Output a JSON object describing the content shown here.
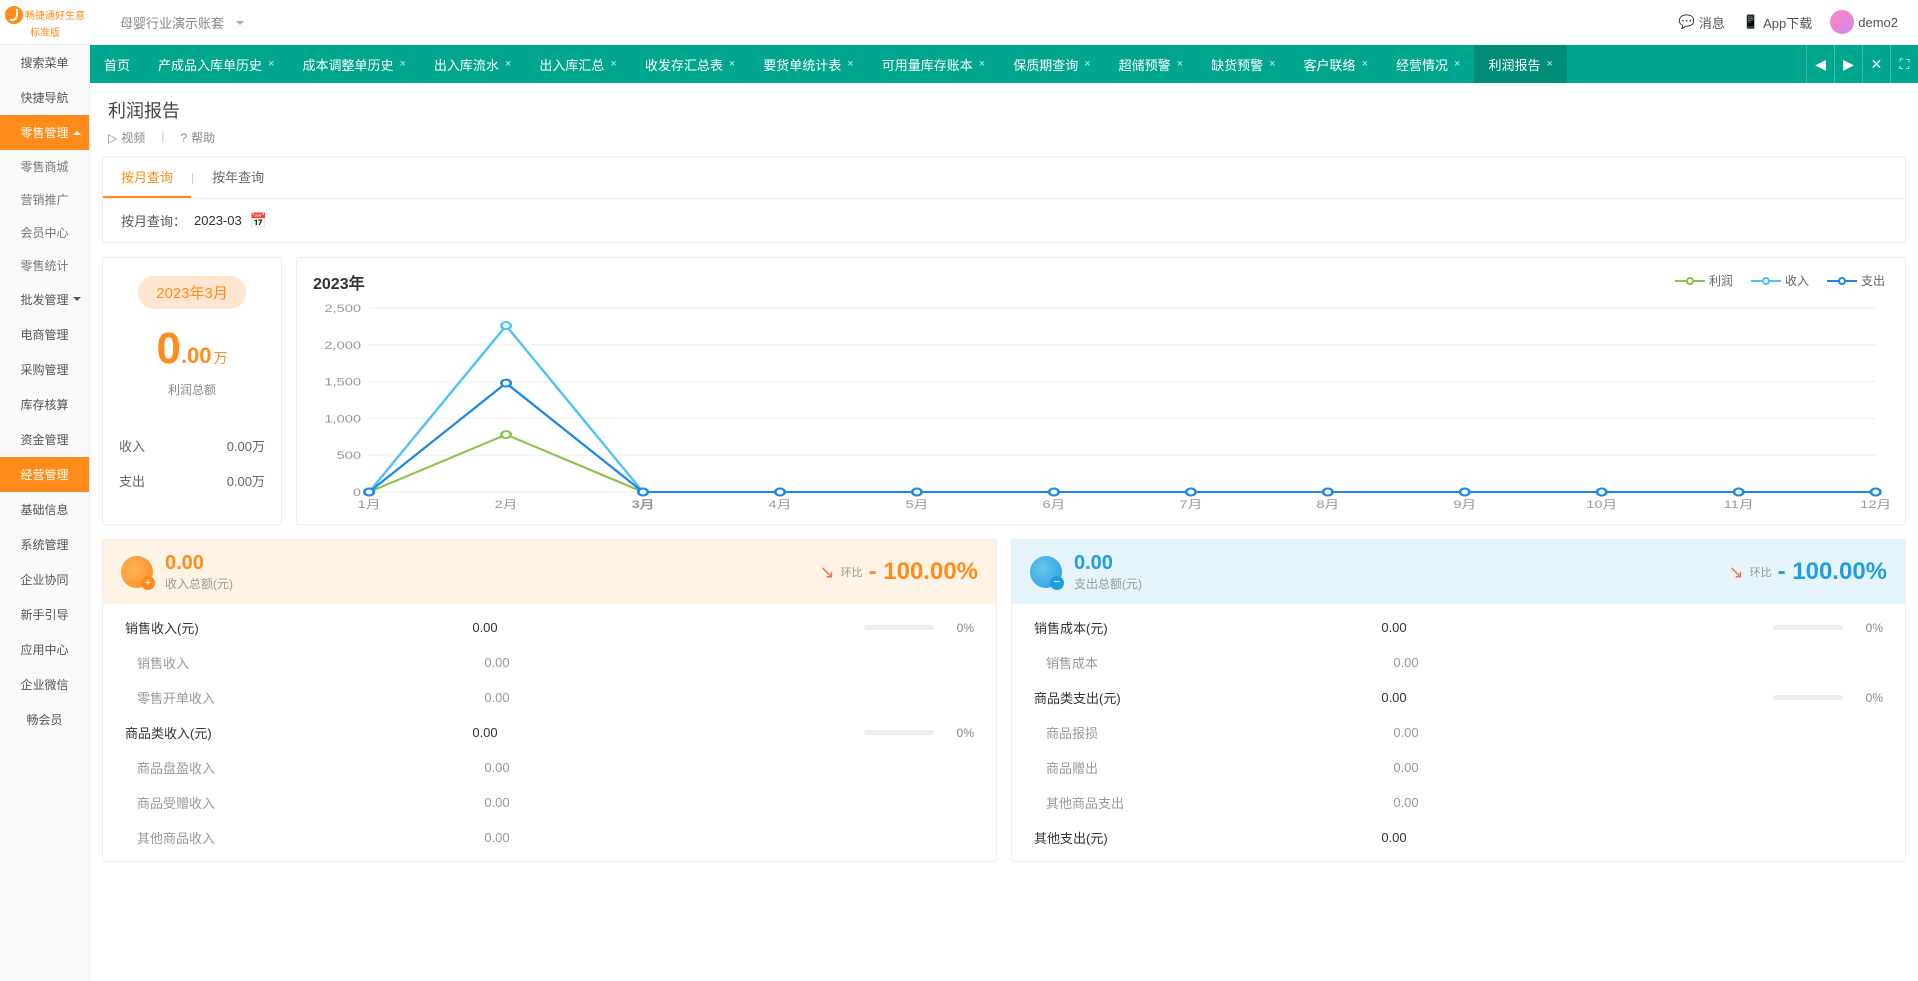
{
  "header": {
    "logo_text": "畅捷通好生意",
    "logo_sub": "标准版",
    "org_name": "母婴行业演示账套",
    "actions": {
      "message": "消息",
      "app_download": "App下载",
      "username": "demo2"
    }
  },
  "sidebar": {
    "items": [
      {
        "label": "搜索菜单",
        "name": "sidebar-item-search"
      },
      {
        "label": "快捷导航",
        "name": "sidebar-item-quicknav"
      },
      {
        "label": "零售管理",
        "name": "sidebar-item-retail",
        "active": true,
        "expanded": true
      },
      {
        "label": "零售商城",
        "name": "sidebar-sub-retail-mall",
        "sub": true
      },
      {
        "label": "营销推广",
        "name": "sidebar-sub-marketing",
        "sub": true
      },
      {
        "label": "会员中心",
        "name": "sidebar-sub-member",
        "sub": true
      },
      {
        "label": "零售统计",
        "name": "sidebar-sub-retail-stats",
        "sub": true
      },
      {
        "label": "批发管理",
        "name": "sidebar-item-wholesale",
        "collapsed": true
      },
      {
        "label": "电商管理",
        "name": "sidebar-item-ecommerce"
      },
      {
        "label": "采购管理",
        "name": "sidebar-item-purchase"
      },
      {
        "label": "库存核算",
        "name": "sidebar-item-inventory"
      },
      {
        "label": "资金管理",
        "name": "sidebar-item-funds"
      },
      {
        "label": "经营管理",
        "name": "sidebar-item-operation",
        "highlight": true
      },
      {
        "label": "基础信息",
        "name": "sidebar-item-basicinfo"
      },
      {
        "label": "系统管理",
        "name": "sidebar-item-system"
      },
      {
        "label": "企业协同",
        "name": "sidebar-item-collab"
      },
      {
        "label": "新手引导",
        "name": "sidebar-item-guide"
      },
      {
        "label": "应用中心",
        "name": "sidebar-item-apps"
      },
      {
        "label": "企业微信",
        "name": "sidebar-item-wechat"
      },
      {
        "label": "畅会员",
        "name": "sidebar-item-changmember"
      }
    ]
  },
  "tabs": [
    {
      "label": "首页",
      "closeable": false
    },
    {
      "label": "产成品入库单历史",
      "closeable": true
    },
    {
      "label": "成本调整单历史",
      "closeable": true
    },
    {
      "label": "出入库流水",
      "closeable": true
    },
    {
      "label": "出入库汇总",
      "closeable": true
    },
    {
      "label": "收发存汇总表",
      "closeable": true
    },
    {
      "label": "要货单统计表",
      "closeable": true
    },
    {
      "label": "可用量库存账本",
      "closeable": true
    },
    {
      "label": "保质期查询",
      "closeable": true
    },
    {
      "label": "超储预警",
      "closeable": true
    },
    {
      "label": "缺货预警",
      "closeable": true
    },
    {
      "label": "客户联络",
      "closeable": true
    },
    {
      "label": "经营情况",
      "closeable": true
    },
    {
      "label": "利润报告",
      "closeable": true,
      "active": true
    }
  ],
  "page": {
    "title": "利润报告",
    "links": {
      "video": "视频",
      "help": "帮助"
    },
    "query_tabs": {
      "monthly": "按月查询",
      "yearly": "按年查询"
    },
    "query_label": "按月查询：",
    "query_date": "2023-03"
  },
  "summary": {
    "period_badge": "2023年3月",
    "main_int": "0",
    "main_dec": ".00",
    "main_unit": "万",
    "main_label": "利润总额",
    "income_label": "收入",
    "income_value": "0.00万",
    "expense_label": "支出",
    "expense_value": "0.00万"
  },
  "chart": {
    "title": "2023年",
    "type": "line",
    "x_labels": [
      "1月",
      "2月",
      "3月",
      "4月",
      "5月",
      "6月",
      "7月",
      "8月",
      "9月",
      "10月",
      "11月",
      "12月"
    ],
    "y_ticks": [
      0,
      500,
      1000,
      1500,
      2000,
      2500
    ],
    "ylim": [
      0,
      2500
    ],
    "highlight_x_index": 2,
    "series": [
      {
        "name": "利润",
        "color": "#8bc34a",
        "values": [
          0,
          780,
          0,
          0,
          0,
          0,
          0,
          0,
          0,
          0,
          0,
          0
        ]
      },
      {
        "name": "收入",
        "color": "#4fc3f7",
        "values": [
          0,
          2260,
          0,
          0,
          0,
          0,
          0,
          0,
          0,
          0,
          0,
          0
        ]
      },
      {
        "name": "支出",
        "color": "#1e88e5",
        "values": [
          0,
          1480,
          0,
          0,
          0,
          0,
          0,
          0,
          0,
          0,
          0,
          0
        ]
      }
    ],
    "grid_color": "#eeeeee",
    "axis_color": "#999999",
    "background_color": "#ffffff"
  },
  "income_panel": {
    "total_value": "0.00",
    "total_label": "收入总额(元)",
    "trend_label": "环比",
    "trend_value": "- 100.00%",
    "rows": [
      {
        "label": "销售收入(元)",
        "value": "0.00",
        "pct": "0%"
      },
      {
        "sub": true,
        "label": "销售收入",
        "value": "0.00"
      },
      {
        "sub": true,
        "label": "零售开单收入",
        "value": "0.00"
      },
      {
        "label": "商品类收入(元)",
        "value": "0.00",
        "pct": "0%"
      },
      {
        "sub": true,
        "label": "商品盘盈收入",
        "value": "0.00"
      },
      {
        "sub": true,
        "label": "商品受赠收入",
        "value": "0.00"
      },
      {
        "sub": true,
        "label": "其他商品收入",
        "value": "0.00"
      }
    ]
  },
  "expense_panel": {
    "total_value": "0.00",
    "total_label": "支出总额(元)",
    "trend_label": "环比",
    "trend_value": "- 100.00%",
    "rows": [
      {
        "label": "销售成本(元)",
        "value": "0.00",
        "pct": "0%"
      },
      {
        "sub": true,
        "label": "销售成本",
        "value": "0.00"
      },
      {
        "label": "商品类支出(元)",
        "value": "0.00",
        "pct": "0%"
      },
      {
        "sub": true,
        "label": "商品报损",
        "value": "0.00"
      },
      {
        "sub": true,
        "label": "商品赠出",
        "value": "0.00"
      },
      {
        "sub": true,
        "label": "其他商品支出",
        "value": "0.00"
      },
      {
        "label": "其他支出(元)",
        "value": "0.00"
      }
    ]
  }
}
